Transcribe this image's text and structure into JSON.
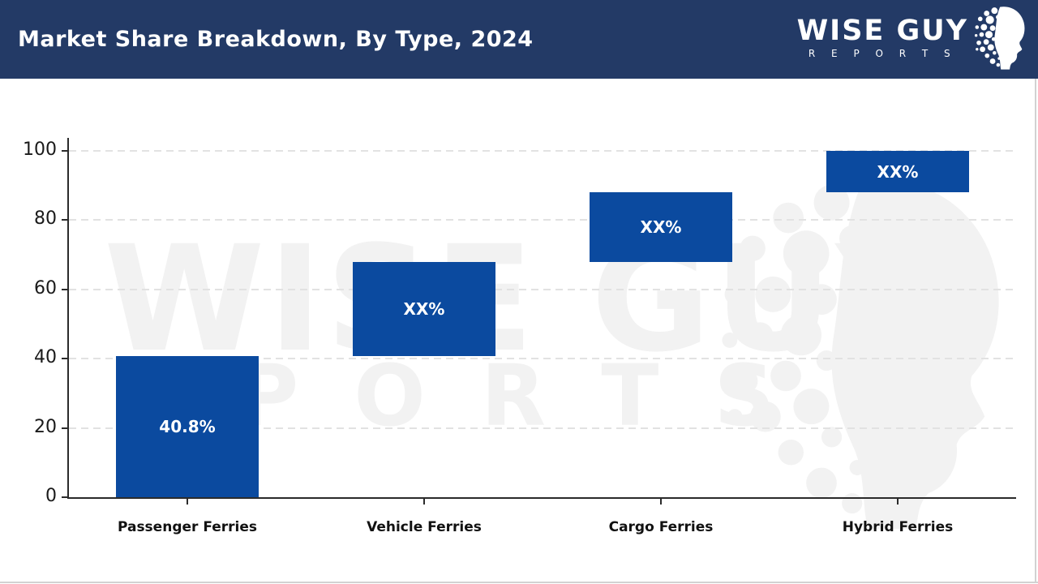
{
  "header": {
    "title": "Market Share Breakdown, By Type, 2024",
    "logo": {
      "line1": "WISE GUY",
      "line2": "R E P O R T S"
    }
  },
  "watermark": {
    "line1": "WISE GUY",
    "line2": "P O R T S"
  },
  "colors": {
    "header_bg": "#233a66",
    "bar": "#0b4a9f",
    "grid": "#e2e2e2",
    "axis": "#2b2b2b",
    "watermark": "#f2f2f2",
    "bar_label_text": "#ffffff",
    "title_text": "#ffffff"
  },
  "chart_data": {
    "type": "bar",
    "subtype": "waterfall",
    "title": "Market Share Breakdown, By Type, 2024",
    "categories": [
      "Passenger Ferries",
      "Vehicle Ferries",
      "Cargo Ferries",
      "Hybrid Ferries"
    ],
    "bars": [
      {
        "category": "Passenger Ferries",
        "start": 0,
        "end": 40.8,
        "label": "40.8%"
      },
      {
        "category": "Vehicle Ferries",
        "start": 40.8,
        "end": 68,
        "label": "XX%"
      },
      {
        "category": "Cargo Ferries",
        "start": 68,
        "end": 88,
        "label": "XX%"
      },
      {
        "category": "Hybrid Ferries",
        "start": 88,
        "end": 100,
        "label": "XX%"
      }
    ],
    "ylim": [
      0,
      100
    ],
    "yticks": [
      0,
      20,
      40,
      60,
      80,
      100
    ],
    "xlabel": "",
    "ylabel": "",
    "grid": "horizontal-dashed",
    "legend": "none"
  }
}
